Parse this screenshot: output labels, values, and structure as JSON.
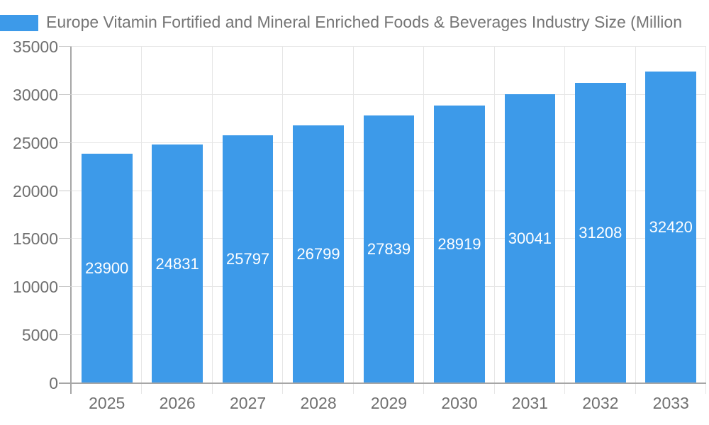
{
  "chart_data": {
    "type": "bar",
    "title": "Europe Vitamin Fortified and Mineral Enriched Foods & Beverages Industry Size (Million",
    "categories": [
      "2025",
      "2026",
      "2027",
      "2028",
      "2029",
      "2030",
      "2031",
      "2032",
      "2033"
    ],
    "values": [
      23900,
      24831,
      25797,
      26799,
      27839,
      28919,
      30041,
      31208,
      32420
    ],
    "value_labels": [
      "23900",
      "24831",
      "25797",
      "26799",
      "27839",
      "28919",
      "30041",
      "31208",
      "32420"
    ],
    "xlabel": "",
    "ylabel": "",
    "ylim": [
      0,
      35000
    ],
    "yticks": [
      0,
      5000,
      10000,
      15000,
      20000,
      25000,
      30000,
      35000
    ],
    "ytick_labels": [
      "0",
      "5000",
      "10000",
      "15000",
      "20000",
      "25000",
      "30000",
      "35000"
    ],
    "grid": true,
    "legend_position": "top-left",
    "colors": {
      "bar": "#3d9ae9",
      "value_label": "#ffffff",
      "axis": "#a6a6a6",
      "gridline": "#e6e6e6",
      "tick": "#c9c9c9",
      "text": "#707070",
      "title_text": "#757575",
      "background": "#ffffff"
    }
  },
  "legend": {
    "swatch_color": "#3d9ae9",
    "label": "Europe Vitamin Fortified and Mineral Enriched Foods & Beverages Industry Size (Million"
  }
}
